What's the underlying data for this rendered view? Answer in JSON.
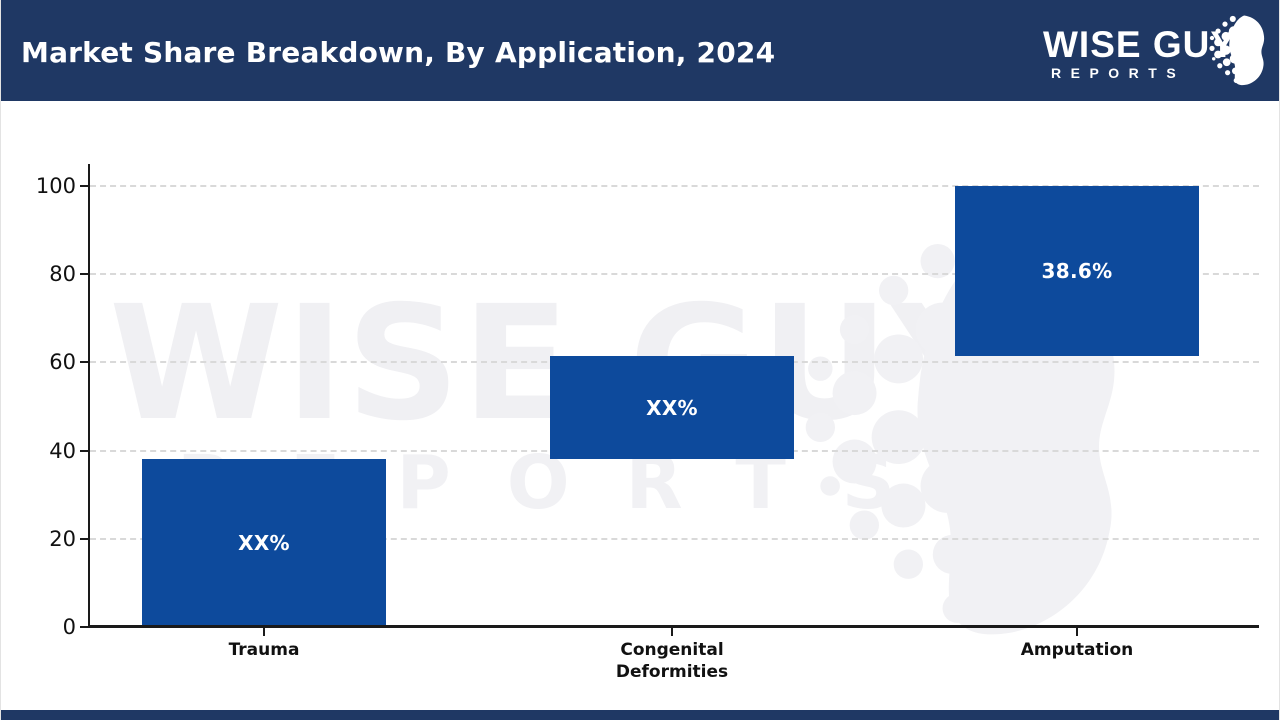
{
  "header": {
    "title": "Market Share Breakdown, By Application, 2024",
    "logo": {
      "primary": "WISE GUY",
      "secondary": "REPORTS"
    }
  },
  "watermark": {
    "primary": "WISE GUY",
    "secondary": "REPORTS"
  },
  "chart_data": {
    "type": "bar",
    "subtype": "floating-segment-breakdown",
    "title": "Market Share Breakdown, By Application, 2024",
    "categories": [
      "Trauma",
      "Congenital Deformities",
      "Amputation"
    ],
    "bars": [
      {
        "category": "Trauma",
        "start": 0,
        "end": 38.0,
        "label": "XX%"
      },
      {
        "category": "Congenital Deformities",
        "start": 38.0,
        "end": 61.4,
        "label": "XX%"
      },
      {
        "category": "Amputation",
        "start": 61.4,
        "end": 100,
        "label": "38.6%"
      }
    ],
    "yticks": [
      0,
      20,
      40,
      60,
      80,
      100
    ],
    "ylim": [
      0,
      105
    ],
    "xlabel": "",
    "ylabel": "",
    "grid": "horizontal-dashed",
    "legend": "none",
    "bar_color": "#0d4a9c",
    "bar_label_color": "#ffffff"
  },
  "colors": {
    "header_bg": "#1f3864",
    "footer_bg": "#1f3864",
    "bar": "#0d4a9c",
    "axis": "#1a1a1a",
    "gridline": "#d9d9d9",
    "watermark": "#f0f0f3"
  }
}
